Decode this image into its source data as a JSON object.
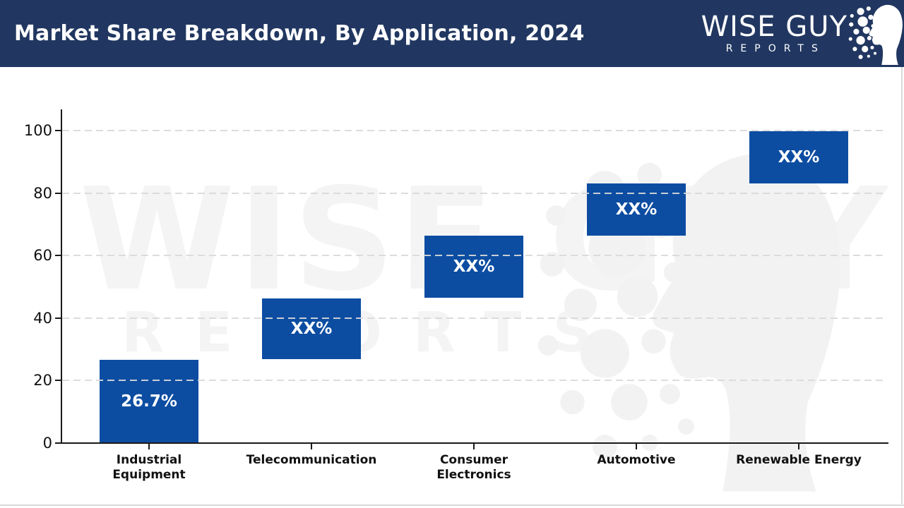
{
  "header": {
    "title": "Market Share Breakdown, By Application, 2024",
    "bg_color": "#213761",
    "logo": {
      "line1": "WISE GUY",
      "line2": "REPORTS"
    }
  },
  "watermark": {
    "line1": "WISE GUY",
    "line2": "REPORTS",
    "color": "#f4f4f4"
  },
  "chart_data": {
    "type": "bar",
    "subtype": "waterfall-floating-bars",
    "title": "Market Share Breakdown, By Application, 2024",
    "categories": [
      "Industrial Equipment",
      "Telecommunication",
      "Consumer Electronics",
      "Automotive",
      "Renewable Energy"
    ],
    "category_label_lines": [
      [
        "Industrial",
        "Equipment"
      ],
      [
        "Telecommunication"
      ],
      [
        "Consumer",
        "Electronics"
      ],
      [
        "Automotive"
      ],
      [
        "Renewable Energy"
      ]
    ],
    "bars": [
      {
        "category": "Industrial Equipment",
        "start": 0,
        "end": 26.7,
        "label": "26.7%"
      },
      {
        "category": "Telecommunication",
        "start": 26.9,
        "end": 46.3,
        "label": "XX%"
      },
      {
        "category": "Consumer Electronics",
        "start": 46.4,
        "end": 66.4,
        "label": "XX%"
      },
      {
        "category": "Automotive",
        "start": 66.4,
        "end": 83.0,
        "label": "XX%"
      },
      {
        "category": "Renewable Energy",
        "start": 83.0,
        "end": 99.8,
        "label": "XX%"
      }
    ],
    "ylim": [
      0,
      106
    ],
    "yticks": [
      0,
      20,
      40,
      60,
      80,
      100
    ],
    "grid": "horizontal-dashed",
    "grid_color": "#d9d9d9",
    "bar_color": "#0c4da2",
    "bar_label_color": "#ffffff",
    "axis_color": "#1a1a1a",
    "xlabel": "",
    "ylabel": "",
    "legend": "none"
  }
}
